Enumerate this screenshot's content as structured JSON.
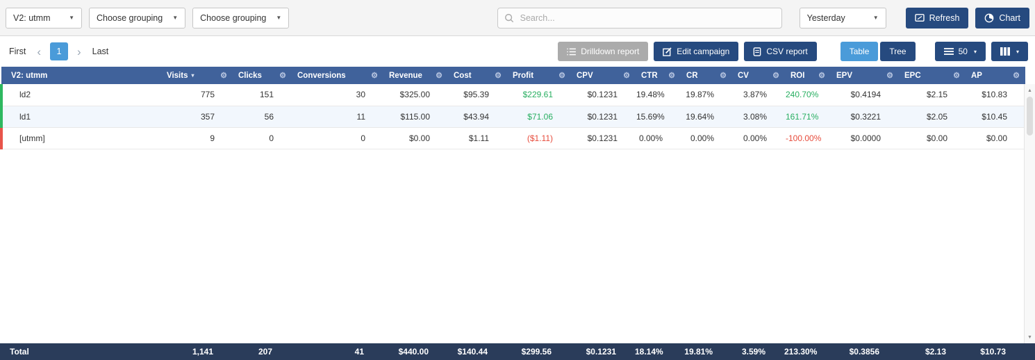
{
  "toolbar": {
    "campaign_select": "V2: utmm",
    "grouping1": "Choose grouping",
    "grouping2": "Choose grouping",
    "search_placeholder": "Search...",
    "date_range": "Yesterday",
    "refresh_label": "Refresh",
    "chart_label": "Chart"
  },
  "pagination": {
    "first_label": "First",
    "current_page": "1",
    "last_label": "Last"
  },
  "actions": {
    "drilldown_label": "Drilldown report",
    "edit_campaign_label": "Edit campaign",
    "csv_report_label": "CSV report",
    "table_label": "Table",
    "tree_label": "Tree",
    "rows_count": "50"
  },
  "icons": {
    "settings_gear": "⚙",
    "sort_desc": "▾",
    "dropdown_caret": "▼",
    "chevron_left": "‹",
    "chevron_right": "›",
    "scroll_up": "▲",
    "scroll_down": "▼"
  },
  "colors": {
    "header_bg": "#40629b",
    "total_bg": "#2a3c5a",
    "accent_blue": "#4a9bd9",
    "dark_button": "#264a7f",
    "positive_green": "#27ae60",
    "negative_red": "#e74c3c"
  },
  "table": {
    "group_column": "V2: utmm",
    "sorted_column": "Visits",
    "columns": [
      "Visits",
      "Clicks",
      "Conversions",
      "Revenue",
      "Cost",
      "Profit",
      "CPV",
      "CTR",
      "CR",
      "CV",
      "ROI",
      "EPV",
      "EPC",
      "AP"
    ],
    "rows": [
      {
        "name": "ld2",
        "status": "green",
        "trend": "positive",
        "values": [
          "775",
          "151",
          "30",
          "$325.00",
          "$95.39",
          "$229.61",
          "$0.1231",
          "19.48%",
          "19.87%",
          "3.87%",
          "240.70%",
          "$0.4194",
          "$2.15",
          "$10.83"
        ]
      },
      {
        "name": "ld1",
        "status": "green",
        "trend": "positive",
        "values": [
          "357",
          "56",
          "11",
          "$115.00",
          "$43.94",
          "$71.06",
          "$0.1231",
          "15.69%",
          "19.64%",
          "3.08%",
          "161.71%",
          "$0.3221",
          "$2.05",
          "$10.45"
        ]
      },
      {
        "name": "[utmm]",
        "status": "red",
        "trend": "negative",
        "values": [
          "9",
          "0",
          "0",
          "$0.00",
          "$1.11",
          "($1.11)",
          "$0.1231",
          "0.00%",
          "0.00%",
          "0.00%",
          "-100.00%",
          "$0.0000",
          "$0.00",
          "$0.00"
        ]
      }
    ],
    "total": {
      "label": "Total",
      "values": [
        "1,141",
        "207",
        "41",
        "$440.00",
        "$140.44",
        "$299.56",
        "$0.1231",
        "18.14%",
        "19.81%",
        "3.59%",
        "213.30%",
        "$0.3856",
        "$2.13",
        "$10.73"
      ]
    }
  }
}
